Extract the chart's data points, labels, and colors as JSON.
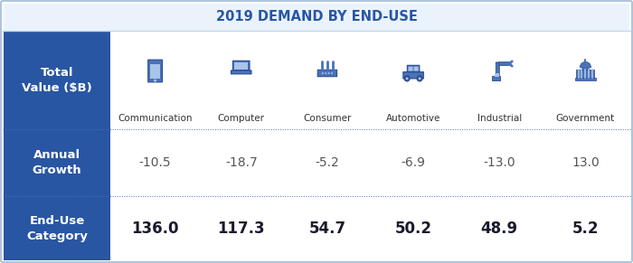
{
  "title": "2019 DEMAND BY END-USE",
  "title_color": "#2856a3",
  "background_color": "#ffffff",
  "sidebar_color": "#2856a3",
  "border_color": "#b0c4de",
  "categories": [
    "Communication",
    "Computer",
    "Consumer",
    "Automotive",
    "Industrial",
    "Government"
  ],
  "annual_growth": [
    "-10.5",
    "-18.7",
    "-5.2",
    "-6.9",
    "-13.0",
    "13.0"
  ],
  "total_value": [
    "136.0",
    "117.3",
    "54.7",
    "50.2",
    "48.9",
    "5.2"
  ],
  "row_labels": [
    "End-Use\nCategory",
    "Annual\nGrowth",
    "Total\nValue ($B)"
  ],
  "row_label_color": "#ffffff",
  "data_text_color": "#333333",
  "growth_text_color": "#555555",
  "value_text_color": "#1a1a2e",
  "divider_color": "#4a72b8",
  "figsize": [
    7.0,
    2.91
  ],
  "dpi": 100,
  "sidebar_color_light": "#3a6bbf",
  "icon_color": "#4a72b8",
  "icon_color_light": "#a8c4e8",
  "icon_color_dark": "#2a4a90"
}
